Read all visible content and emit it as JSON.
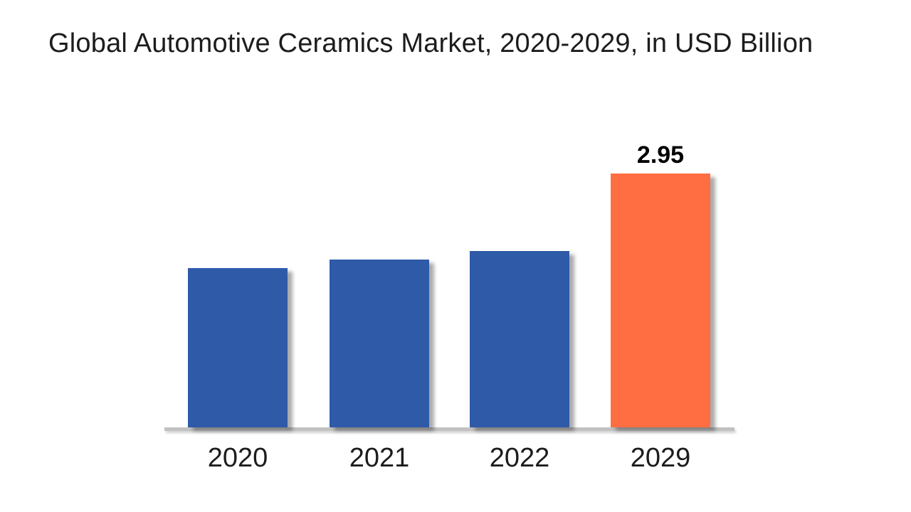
{
  "chart_data": {
    "type": "bar",
    "title": "Global Automotive Ceramics Market, 2020-2029, in USD Billion",
    "categories": [
      "2020",
      "2021",
      "2022",
      "2029"
    ],
    "values": [
      1.85,
      1.95,
      2.05,
      2.95
    ],
    "data_labels": [
      "",
      "",
      "",
      "2.95"
    ],
    "bar_colors": [
      "#2e5aa8",
      "#2e5aa8",
      "#2e5aa8",
      "#ff6e42"
    ],
    "base_color": "#2e5aa8",
    "highlight_color": "#ff6e42",
    "axis_line_color": "#c1c1c1",
    "title_color": "#1c1c1c",
    "tick_label_color": "#1c1c1c",
    "data_label_color": "#000000",
    "xlabel": "",
    "ylabel": "",
    "ylim": [
      0,
      3.2
    ],
    "grid": false,
    "legend": false,
    "background": "#ffffff"
  }
}
